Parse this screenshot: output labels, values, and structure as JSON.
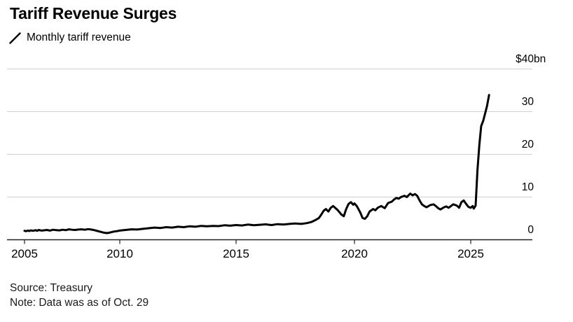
{
  "title": "Tariff Revenue Surges",
  "legend": {
    "icon": "line-series-slash",
    "label": "Monthly tariff revenue"
  },
  "source": "Source: Treasury",
  "note": "Note: Data was as of Oct. 29",
  "colors": {
    "line": "#000000",
    "grid": "#d0d0d0",
    "axis": "#222222",
    "text": "#000000",
    "background": "#ffffff"
  },
  "y_axis": {
    "unit": "$bn",
    "ticks": [
      {
        "v": 40,
        "label": "$40",
        "suffix": "bn"
      },
      {
        "v": 30,
        "label": "30"
      },
      {
        "v": 20,
        "label": "20"
      },
      {
        "v": 10,
        "label": "10"
      },
      {
        "v": 0,
        "label": "0"
      }
    ]
  },
  "x_axis": {
    "ticks": [
      {
        "v": 2005,
        "label": "2005"
      },
      {
        "v": 2010,
        "label": "2010"
      },
      {
        "v": 2015,
        "label": "2015"
      },
      {
        "v": 2020,
        "label": "2020"
      },
      {
        "v": 2025,
        "label": "2025"
      }
    ]
  },
  "chart_data": {
    "type": "line",
    "title": "Tariff Revenue Surges",
    "ylabel": "$bn",
    "ylim": [
      0,
      40
    ],
    "x_range": [
      2005,
      2025.8
    ],
    "grid": true,
    "legend_position": "top-left",
    "series": [
      {
        "name": "Monthly tariff revenue",
        "points": [
          [
            2005.0,
            2.1
          ],
          [
            2005.08,
            2.0
          ],
          [
            2005.17,
            2.15
          ],
          [
            2005.25,
            2.05
          ],
          [
            2005.33,
            2.2
          ],
          [
            2005.42,
            2.1
          ],
          [
            2005.5,
            2.15
          ],
          [
            2005.58,
            2.25
          ],
          [
            2005.67,
            2.1
          ],
          [
            2005.75,
            2.3
          ],
          [
            2005.83,
            2.2
          ],
          [
            2005.92,
            2.15
          ],
          [
            2006.0,
            2.2
          ],
          [
            2006.17,
            2.3
          ],
          [
            2006.33,
            2.15
          ],
          [
            2006.5,
            2.35
          ],
          [
            2006.67,
            2.25
          ],
          [
            2006.83,
            2.2
          ],
          [
            2007.0,
            2.35
          ],
          [
            2007.17,
            2.25
          ],
          [
            2007.33,
            2.45
          ],
          [
            2007.5,
            2.35
          ],
          [
            2007.67,
            2.3
          ],
          [
            2007.83,
            2.4
          ],
          [
            2008.0,
            2.45
          ],
          [
            2008.17,
            2.35
          ],
          [
            2008.33,
            2.5
          ],
          [
            2008.5,
            2.4
          ],
          [
            2008.67,
            2.25
          ],
          [
            2008.83,
            2.05
          ],
          [
            2009.0,
            1.85
          ],
          [
            2009.17,
            1.65
          ],
          [
            2009.33,
            1.55
          ],
          [
            2009.5,
            1.7
          ],
          [
            2009.67,
            1.9
          ],
          [
            2009.83,
            2.0
          ],
          [
            2010.0,
            2.15
          ],
          [
            2010.25,
            2.3
          ],
          [
            2010.5,
            2.45
          ],
          [
            2010.75,
            2.4
          ],
          [
            2011.0,
            2.55
          ],
          [
            2011.25,
            2.7
          ],
          [
            2011.5,
            2.85
          ],
          [
            2011.75,
            2.75
          ],
          [
            2012.0,
            2.95
          ],
          [
            2012.25,
            2.85
          ],
          [
            2012.5,
            3.05
          ],
          [
            2012.75,
            2.95
          ],
          [
            2013.0,
            3.15
          ],
          [
            2013.25,
            3.05
          ],
          [
            2013.5,
            3.25
          ],
          [
            2013.75,
            3.15
          ],
          [
            2014.0,
            3.25
          ],
          [
            2014.25,
            3.2
          ],
          [
            2014.5,
            3.4
          ],
          [
            2014.75,
            3.3
          ],
          [
            2015.0,
            3.45
          ],
          [
            2015.25,
            3.35
          ],
          [
            2015.5,
            3.55
          ],
          [
            2015.75,
            3.4
          ],
          [
            2016.0,
            3.5
          ],
          [
            2016.25,
            3.6
          ],
          [
            2016.5,
            3.45
          ],
          [
            2016.75,
            3.65
          ],
          [
            2017.0,
            3.55
          ],
          [
            2017.25,
            3.7
          ],
          [
            2017.5,
            3.8
          ],
          [
            2017.75,
            3.7
          ],
          [
            2018.0,
            3.9
          ],
          [
            2018.2,
            4.2
          ],
          [
            2018.35,
            4.6
          ],
          [
            2018.5,
            5.1
          ],
          [
            2018.6,
            5.9
          ],
          [
            2018.7,
            6.8
          ],
          [
            2018.8,
            7.2
          ],
          [
            2018.9,
            6.6
          ],
          [
            2019.0,
            7.5
          ],
          [
            2019.1,
            7.9
          ],
          [
            2019.2,
            7.4
          ],
          [
            2019.3,
            6.9
          ],
          [
            2019.45,
            5.9
          ],
          [
            2019.55,
            5.5
          ],
          [
            2019.65,
            7.2
          ],
          [
            2019.75,
            8.4
          ],
          [
            2019.85,
            8.8
          ],
          [
            2019.95,
            8.2
          ],
          [
            2020.0,
            8.5
          ],
          [
            2020.1,
            7.9
          ],
          [
            2020.25,
            6.4
          ],
          [
            2020.35,
            5.1
          ],
          [
            2020.45,
            4.9
          ],
          [
            2020.55,
            5.5
          ],
          [
            2020.65,
            6.6
          ],
          [
            2020.8,
            7.2
          ],
          [
            2020.9,
            6.9
          ],
          [
            2021.0,
            7.5
          ],
          [
            2021.15,
            7.9
          ],
          [
            2021.3,
            7.4
          ],
          [
            2021.45,
            8.6
          ],
          [
            2021.6,
            8.9
          ],
          [
            2021.7,
            9.4
          ],
          [
            2021.8,
            9.8
          ],
          [
            2021.9,
            9.6
          ],
          [
            2022.0,
            10.0
          ],
          [
            2022.15,
            10.3
          ],
          [
            2022.25,
            10.0
          ],
          [
            2022.4,
            10.8
          ],
          [
            2022.5,
            10.4
          ],
          [
            2022.6,
            10.7
          ],
          [
            2022.7,
            10.3
          ],
          [
            2022.8,
            9.2
          ],
          [
            2022.9,
            8.3
          ],
          [
            2023.0,
            7.9
          ],
          [
            2023.1,
            7.6
          ],
          [
            2023.25,
            8.1
          ],
          [
            2023.4,
            8.3
          ],
          [
            2023.5,
            7.9
          ],
          [
            2023.6,
            7.4
          ],
          [
            2023.7,
            7.1
          ],
          [
            2023.85,
            7.6
          ],
          [
            2023.95,
            7.8
          ],
          [
            2024.05,
            7.5
          ],
          [
            2024.15,
            7.9
          ],
          [
            2024.25,
            8.3
          ],
          [
            2024.4,
            8.0
          ],
          [
            2024.5,
            7.5
          ],
          [
            2024.6,
            8.8
          ],
          [
            2024.7,
            9.2
          ],
          [
            2024.8,
            8.4
          ],
          [
            2024.9,
            7.7
          ],
          [
            2025.0,
            7.5
          ],
          [
            2025.08,
            7.9
          ],
          [
            2025.13,
            7.3
          ],
          [
            2025.21,
            8.0
          ],
          [
            2025.29,
            16.3
          ],
          [
            2025.37,
            22.2
          ],
          [
            2025.45,
            26.6
          ],
          [
            2025.54,
            27.9
          ],
          [
            2025.62,
            29.6
          ],
          [
            2025.7,
            31.3
          ],
          [
            2025.79,
            33.9
          ]
        ]
      }
    ]
  }
}
